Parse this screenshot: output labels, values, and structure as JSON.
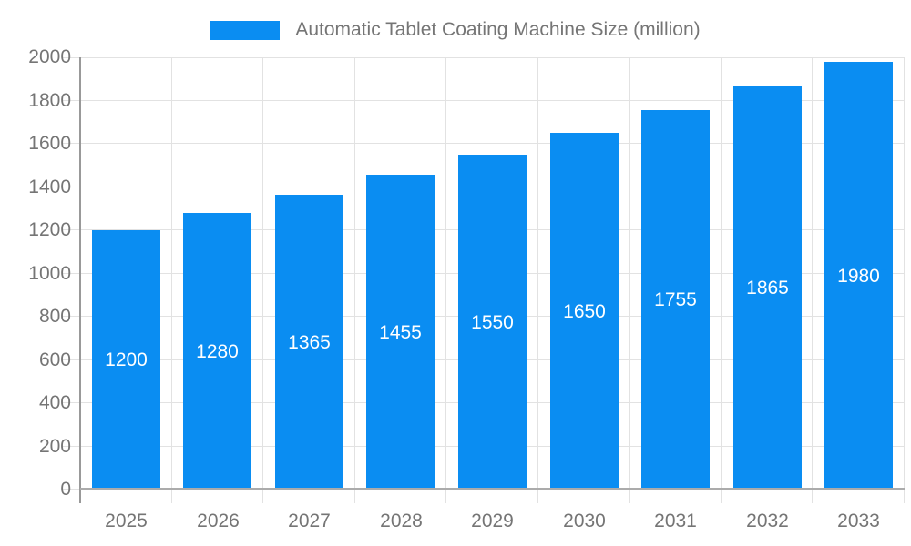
{
  "legend": {
    "label": "Automatic Tablet Coating Machine Size (million)"
  },
  "chart_data": {
    "type": "bar",
    "title": "Automatic Tablet Coating Machine Size (million)",
    "categories": [
      "2025",
      "2026",
      "2027",
      "2028",
      "2029",
      "2030",
      "2031",
      "2032",
      "2033"
    ],
    "values": [
      1200,
      1280,
      1365,
      1455,
      1550,
      1650,
      1755,
      1865,
      1980
    ],
    "series_name": "Automatic Tablet Coating Machine Size (million)",
    "xlabel": "",
    "ylabel": "",
    "ylim": [
      0,
      2000
    ],
    "ytick_step": 200,
    "ytick_labels": [
      "0",
      "200",
      "400",
      "600",
      "800",
      "1000",
      "1200",
      "1400",
      "1600",
      "1800",
      "2000"
    ],
    "grid": true,
    "legend_position": "top",
    "bar_labels_inside": true,
    "colors": {
      "bar": "#0a8df2",
      "bar_value_text": "#ffffff",
      "axis_text": "#757575",
      "gridline": "#e2e2e2",
      "y_axis_line": "#999999",
      "x_axis_line": "#ababab",
      "background": "#ffffff"
    }
  }
}
